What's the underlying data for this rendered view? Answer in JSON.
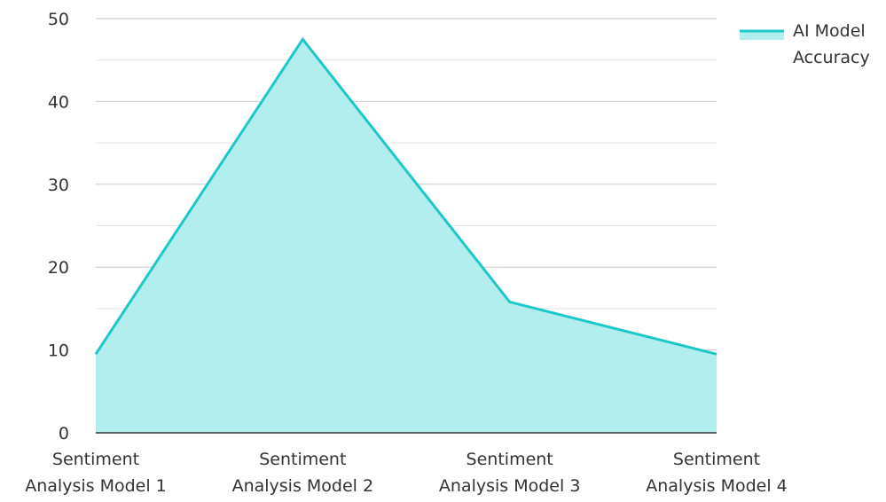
{
  "chart_data": {
    "type": "area",
    "categories": [
      "Sentiment Analysis Model 1",
      "Sentiment Analysis Model 2",
      "Sentiment Analysis Model 3",
      "Sentiment Analysis Model 4"
    ],
    "category_lines": [
      [
        "Sentiment",
        "Analysis Model 1"
      ],
      [
        "Sentiment",
        "Analysis Model 2"
      ],
      [
        "Sentiment",
        "Analysis Model 3"
      ],
      [
        "Sentiment",
        "Analysis Model 4"
      ]
    ],
    "series": [
      {
        "name": "AI Model Accuracy",
        "name_lines": [
          "AI Model",
          "Accuracy"
        ],
        "values": [
          9.5,
          47.5,
          15.8,
          9.5
        ],
        "line_color": "#1ec8c8",
        "fill_color": "#b2eeee"
      }
    ],
    "ylim": [
      0,
      50
    ],
    "yticks": [
      0,
      10,
      20,
      30,
      40,
      50
    ],
    "minor_grid": true,
    "legend_position": "top-right",
    "title": "",
    "xlabel": "",
    "ylabel": ""
  }
}
